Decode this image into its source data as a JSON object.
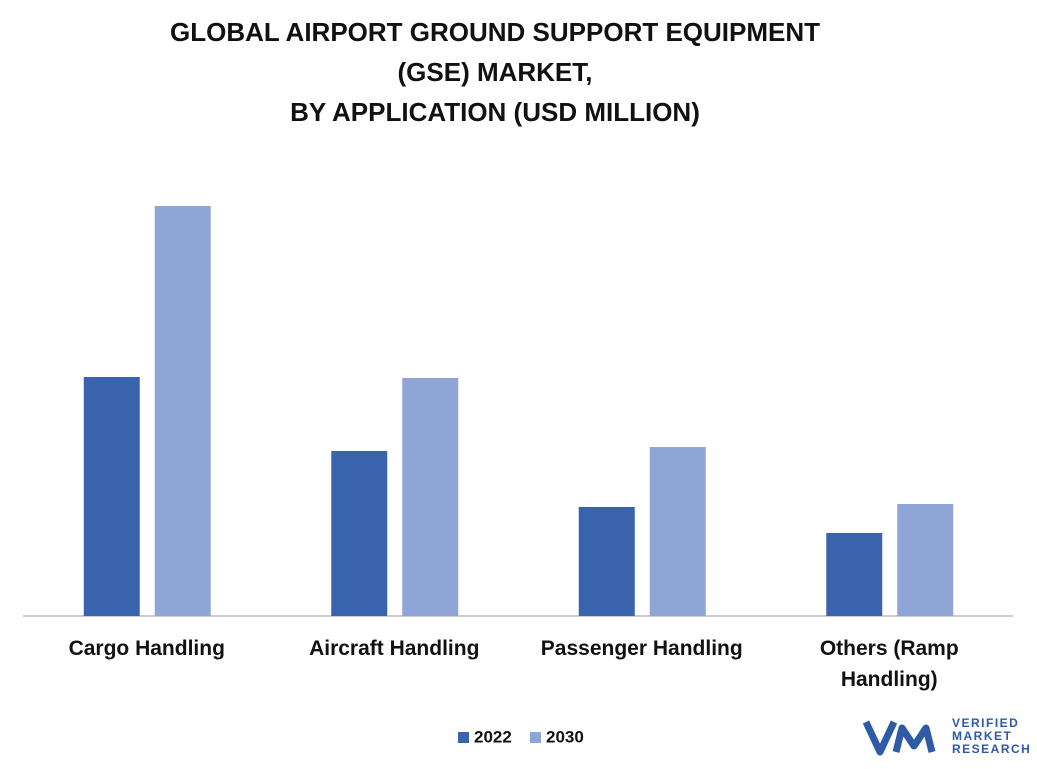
{
  "chart_data": {
    "type": "bar",
    "title": [
      "GLOBAL AIRPORT GROUND SUPPORT EQUIPMENT",
      "(GSE) MARKET,",
      "BY APPLICATION  (USD MILLION)"
    ],
    "categories": [
      "Cargo Handling",
      "Aircraft Handling",
      "Passenger Handling",
      "Others (Ramp Handling)"
    ],
    "series": [
      {
        "name": "2022",
        "color": "#3a63ad",
        "values": [
          239,
          165,
          109,
          83
        ]
      },
      {
        "name": "2030",
        "color": "#8fa5d6",
        "values": [
          410,
          238,
          169,
          112
        ]
      }
    ],
    "ylim": [
      0,
      450
    ],
    "grid": false,
    "legend": "bottom"
  },
  "logo": {
    "lines": [
      "VERIFIED",
      "MARKET",
      "RESEARCH"
    ]
  }
}
